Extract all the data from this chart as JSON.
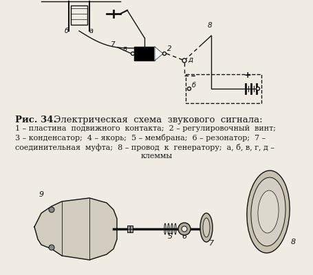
{
  "bg_color": "#f0ece4",
  "text_color": "#1a1a1a",
  "fig_width": 4.56,
  "fig_height": 4.0,
  "dpi": 100,
  "title_bold": "Рис. 34.",
  "title_rest": " Электрическая  схема  звукового  сигнала:",
  "caption_lines": [
    "1 – пластина  подвижного  контакта;  2 – регулировочный  винт;",
    "3 – конденсатор;  4 – якорь;  5 – мембрана;  6 – резонатор;  7 –",
    "соединительная  муфта;  8 – провод  к  генератору;  а, б, в, г, д –",
    "клеммы"
  ],
  "lc": "#111111",
  "lw": 1.0
}
